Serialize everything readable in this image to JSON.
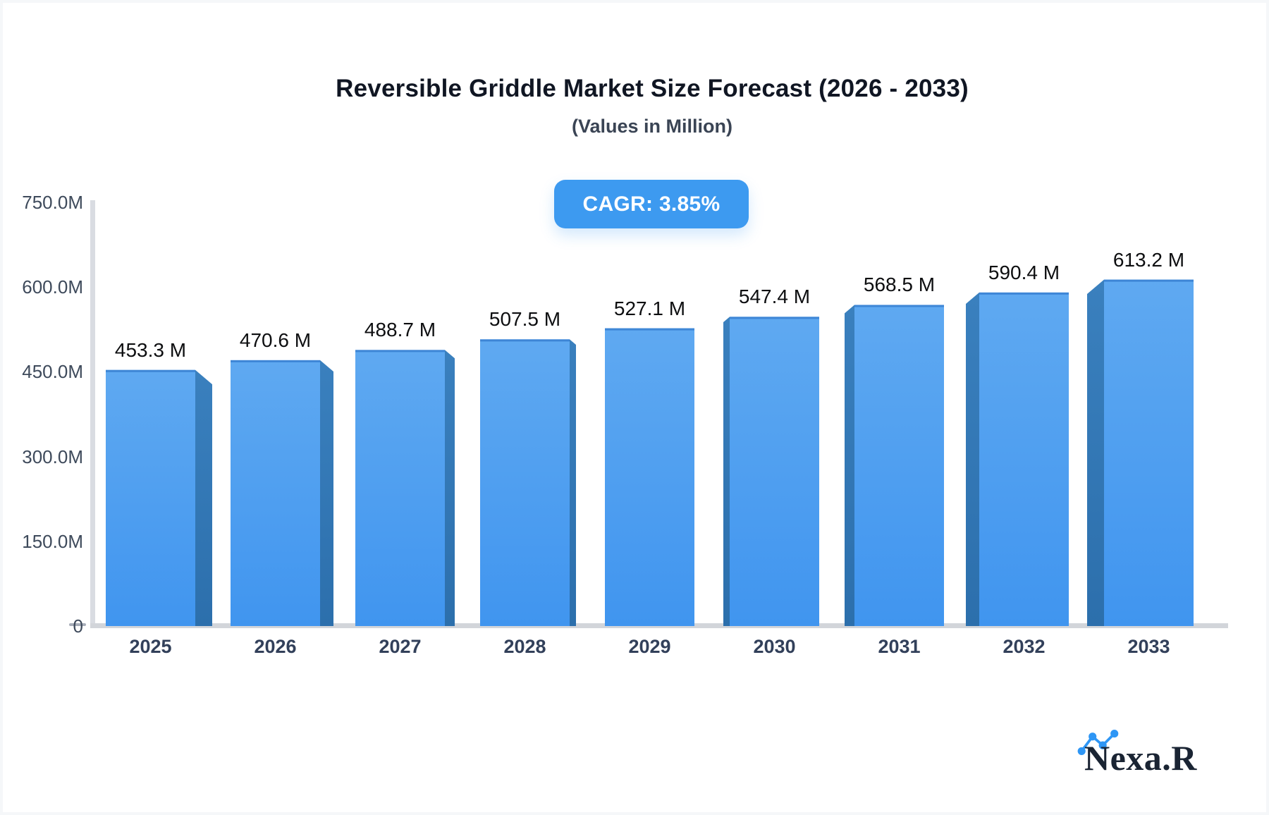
{
  "page": {
    "title": "Reversible Griddle Market Size Forecast (2026 - 2033)",
    "subtitle": "(Values in Million)",
    "cagr_label": "CAGR: 3.85%",
    "logo_text": "Nexa.R",
    "logo_icon": "line-chart-icon"
  },
  "colors": {
    "badge_blue": "#3D9AF0",
    "bar_face_top": "#5FA9F1",
    "bar_face_bottom": "#4095EF",
    "bar_side": "#2F74B3",
    "bar_top_edge": "#3E86D6",
    "axis_line": "#D9DCE2",
    "baseline": "#D2D5DA",
    "logo_blue": "#2E96F5",
    "label_text": "#0D0E10",
    "axis_text": "#3E4A5B"
  },
  "chart_data": {
    "type": "bar",
    "title": "Reversible Griddle Market Size Forecast (2026 - 2033)",
    "subtitle": "(Values in Million)",
    "annotation": "CAGR: 3.85%",
    "categories": [
      "2025",
      "2026",
      "2027",
      "2028",
      "2029",
      "2030",
      "2031",
      "2032",
      "2033"
    ],
    "values": [
      453.3,
      470.6,
      488.7,
      507.5,
      527.1,
      547.4,
      568.5,
      590.4,
      613.2
    ],
    "value_labels": [
      "453.3 M",
      "470.6 M",
      "488.7 M",
      "507.5 M",
      "527.1 M",
      "547.4 M",
      "568.5 M",
      "590.4 M",
      "613.2 M"
    ],
    "unit": "Million",
    "ylim": [
      0,
      750
    ],
    "y_ticks": [
      {
        "value": 750,
        "label": "750.0M"
      },
      {
        "value": 600,
        "label": "600.0M"
      },
      {
        "value": 450,
        "label": "450.0M"
      },
      {
        "value": 300,
        "label": "300.0M"
      },
      {
        "value": 150,
        "label": "150.0M"
      },
      {
        "value": 0,
        "label": "0"
      }
    ],
    "grid": false,
    "legend": "none",
    "bar_style": "3d-perspective-center"
  }
}
